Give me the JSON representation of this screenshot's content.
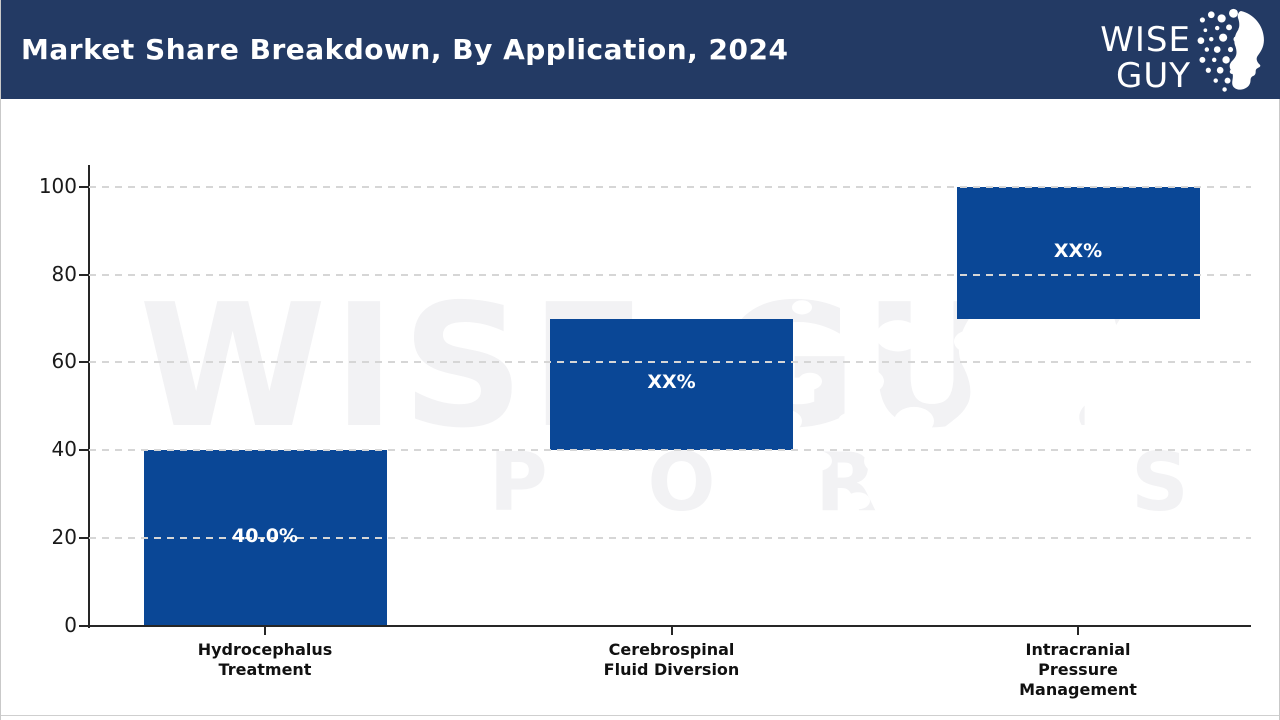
{
  "header": {
    "title": "Market Share Breakdown, By Application, 2024",
    "logo": {
      "line1": "WISE GUY",
      "line2": "R E P O R T S"
    }
  },
  "watermark": {
    "line1": "WISE GUY",
    "line2": "R E P O R T S"
  },
  "chart_data": {
    "type": "bar",
    "subtype": "waterfall-floating-segments",
    "title": "Market Share Breakdown, By Application, 2024",
    "categories": [
      "Hydrocephalus\nTreatment",
      "Cerebrospinal\nFluid Diversion",
      "Intracranial\nPressure\nManagement"
    ],
    "segments": [
      {
        "category": "Hydrocephalus Treatment",
        "start": 0,
        "end": 40,
        "label": "40.0%"
      },
      {
        "category": "Cerebrospinal Fluid Diversion",
        "start": 40,
        "end": 70,
        "label": "XX%"
      },
      {
        "category": "Intracranial Pressure Management",
        "start": 70,
        "end": 100,
        "label": "XX%"
      }
    ],
    "ylim": [
      0,
      100
    ],
    "yticks": [
      0,
      20,
      40,
      60,
      80,
      100
    ],
    "xlabel": "",
    "ylabel": "",
    "grid": "horizontal-dashed",
    "legend": "none",
    "bar_color": "#0a4796",
    "bar_label_color": "#ffffff"
  },
  "colors": {
    "header_bg": "#233a64",
    "bar": "#0a4796",
    "gridline": "#d6d6d6",
    "axis": "#262626",
    "watermark": "#f2f2f4"
  }
}
